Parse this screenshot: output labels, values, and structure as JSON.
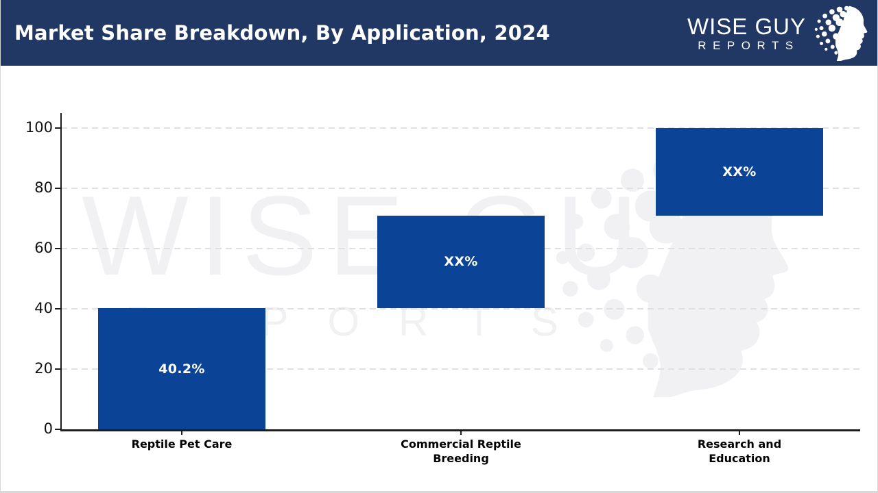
{
  "header": {
    "title": "Market Share Breakdown, By Application, 2024",
    "logo": {
      "line1": "WISE GUY",
      "line2": "REPORTS"
    }
  },
  "watermark": {
    "line1": "WISE GUY",
    "line2": "REPORTS"
  },
  "chart_data": {
    "type": "bar",
    "variant": "floating_segment_bars",
    "title": "Market Share Breakdown, By Application, 2024",
    "categories": [
      "Reptile Pet Care",
      "Commercial Reptile Breeding",
      "Research and Education"
    ],
    "categories_wrapped": [
      [
        "Reptile Pet Care"
      ],
      [
        "Commercial Reptile",
        "Breeding"
      ],
      [
        "Research and",
        "Education"
      ]
    ],
    "segments": [
      {
        "category": "Reptile Pet Care",
        "start": 0,
        "end": 40.2,
        "label": "40.2%"
      },
      {
        "category": "Commercial Reptile Breeding",
        "start": 40.2,
        "end": 71,
        "label": "XX%"
      },
      {
        "category": "Research and Education",
        "start": 71,
        "end": 100,
        "label": "XX%"
      }
    ],
    "xlabel": "",
    "ylabel": "",
    "yticks": [
      0,
      20,
      40,
      60,
      80,
      100
    ],
    "ylim": [
      0,
      105
    ],
    "grid": {
      "horizontal": true,
      "style": "dashed",
      "color": "#e0e0e0"
    },
    "legend": null,
    "bar_color": "#0b4397",
    "bar_label_color": "#ffffff",
    "axis_color": "#1c1c1c",
    "header_bg_color": "#213764"
  }
}
